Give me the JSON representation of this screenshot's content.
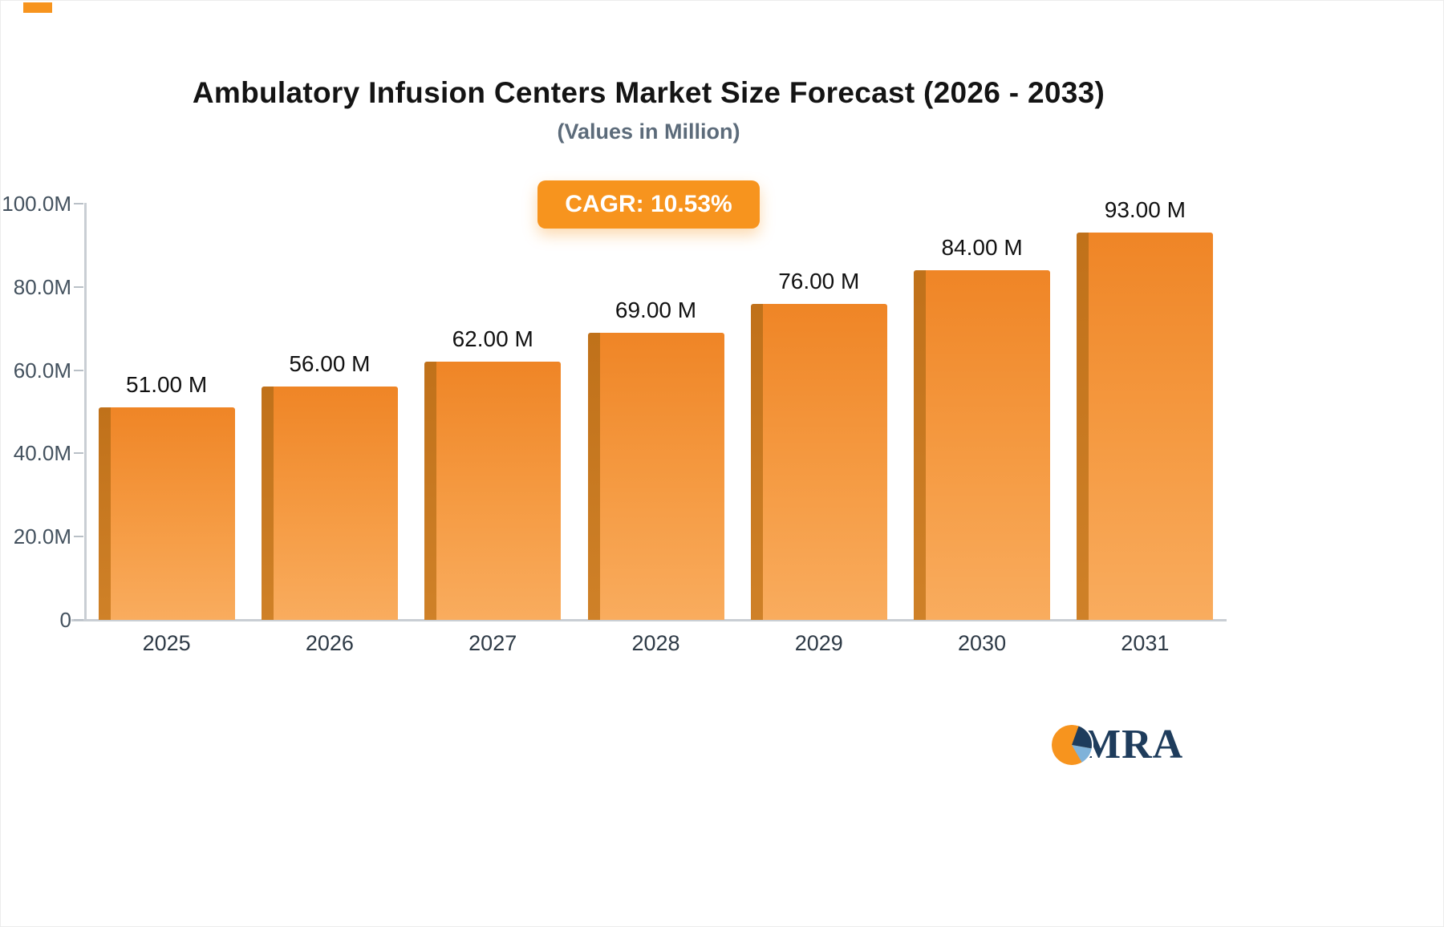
{
  "header": {
    "title": "Ambulatory Infusion Centers Market Size Forecast (2026 - 2033)",
    "subtitle": "(Values in Million)"
  },
  "badge": {
    "label": "CAGR: 10.53%",
    "background": "#F7941E",
    "text_color": "#FFFFFF"
  },
  "chart_data": {
    "type": "bar",
    "title": "Ambulatory Infusion Centers Market Size Forecast (2026 - 2033)",
    "subtitle": "(Values in Million)",
    "unit": "Million",
    "categories": [
      "2025",
      "2026",
      "2027",
      "2028",
      "2029",
      "2030",
      "2031"
    ],
    "values": [
      51,
      56,
      62,
      69,
      76,
      84,
      93
    ],
    "value_labels": [
      "51.00 M",
      "56.00 M",
      "62.00 M",
      "69.00 M",
      "76.00 M",
      "84.00 M",
      "93.00 M"
    ],
    "ylim": [
      0,
      100
    ],
    "y_tick_values": [
      100,
      80,
      60,
      40,
      20,
      0
    ],
    "y_tick_labels": [
      "100.0M",
      "80.0M",
      "60.0M",
      "40.0M",
      "20.0M",
      "0"
    ],
    "grid": false,
    "legend": "none",
    "bar_color": "#F7941E",
    "bar_gradient_top": "#EF8526",
    "bar_gradient_bottom": "#F9AC5E",
    "bar_side_color": "#C0711A",
    "cagr_annotation": "CAGR: 10.53%"
  },
  "logo": {
    "text": "MRA"
  }
}
